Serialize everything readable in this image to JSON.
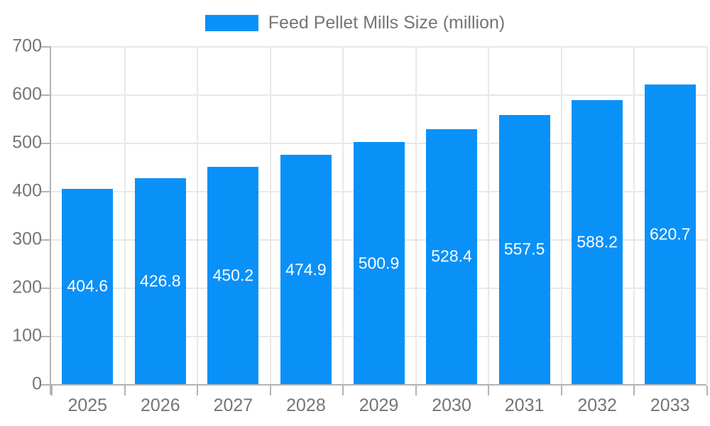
{
  "legend": {
    "label": "Feed Pellet Mills Size (million)"
  },
  "colors": {
    "bar": "#0a91f8",
    "axis_text": "#757575",
    "gridline": "#e8e8e8",
    "axis_line": "#b3b3b3",
    "value_label": "#ffffff",
    "background": "#ffffff"
  },
  "chart_data": {
    "type": "bar",
    "title": "",
    "xlabel": "",
    "ylabel": "",
    "categories": [
      "2025",
      "2026",
      "2027",
      "2028",
      "2029",
      "2030",
      "2031",
      "2032",
      "2033"
    ],
    "series": [
      {
        "name": "Feed Pellet Mills Size (million)",
        "values": [
          404.6,
          426.8,
          450.2,
          474.9,
          500.9,
          528.4,
          557.5,
          588.2,
          620.7
        ]
      }
    ],
    "data_labels_shown": true,
    "ylim": [
      0,
      700
    ],
    "yticks": [
      0,
      100,
      200,
      300,
      400,
      500,
      600,
      700
    ],
    "grid": true,
    "legend_position": "top-center",
    "bar_color": "#0a91f8"
  }
}
